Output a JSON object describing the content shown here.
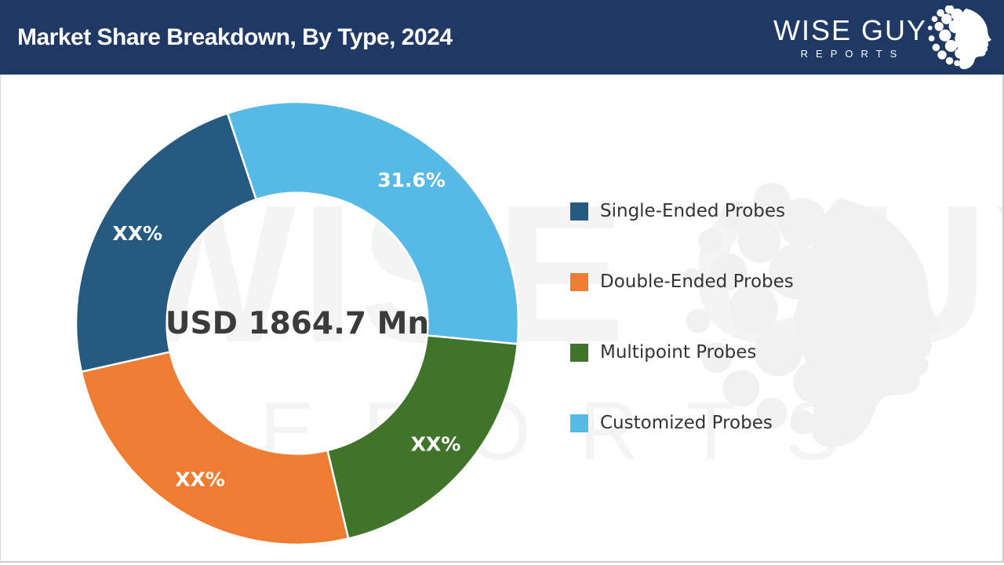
{
  "header": {
    "title": "Market Share Breakdown, By Type, 2024",
    "bg_color": "#1f3864",
    "logo": {
      "line1": "WISE GUY",
      "line2": "REPORTS"
    }
  },
  "watermark": {
    "line1": "WISE GUY",
    "line2": "EPORTS"
  },
  "chart_data": {
    "type": "pie",
    "subtype": "donut",
    "title": "Market Share Breakdown, By Type, 2024",
    "center_text": "USD 1864.7 Mn",
    "start_angle_deg": -18.4,
    "inner_radius_ratio": 0.59,
    "segments": [
      {
        "label": "Customized Probes",
        "value": 31.6,
        "display_value": "31.6%",
        "color": "#57b9e5"
      },
      {
        "label": "Multipoint Probes",
        "value": 19.8,
        "display_value": "XX%",
        "color": "#41742b"
      },
      {
        "label": "Double-Ended Probes",
        "value": 25.2,
        "display_value": "XX%",
        "color": "#ee7d33"
      },
      {
        "label": "Single-Ended Probes",
        "value": 23.4,
        "display_value": "XX%",
        "color": "#275a80"
      }
    ],
    "legend": [
      {
        "label": "Single-Ended Probes",
        "color": "#275a80"
      },
      {
        "label": "Double-Ended Probes",
        "color": "#ee7d33"
      },
      {
        "label": "Multipoint Probes",
        "color": "#41742b"
      },
      {
        "label": "Customized Probes",
        "color": "#57b9e5"
      }
    ],
    "legend_position": "right",
    "label_color": "#ffffff",
    "center_text_color": "#3b3b3b"
  }
}
